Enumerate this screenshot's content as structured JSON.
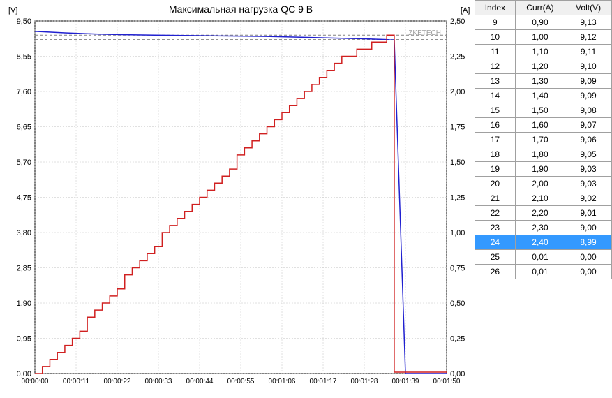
{
  "chart": {
    "title": "Максимальная нагрузка QC 9 В",
    "title_fontsize": 14,
    "left_axis_label": "[V]",
    "right_axis_label": "[A]",
    "watermark": "ZKETECH",
    "background_color": "#ffffff",
    "grid_color": "#c0c0c0",
    "axis_color": "#000000",
    "voltage_line_color": "#2020d0",
    "current_line_color": "#d02020",
    "dashed_ref_color": "#808080",
    "left_y": {
      "min": 0,
      "max": 9.5,
      "ticks": [
        0.0,
        0.95,
        1.9,
        2.85,
        3.8,
        4.75,
        5.7,
        6.65,
        7.6,
        8.55,
        9.5
      ],
      "tick_labels": [
        "0,00",
        "0,95",
        "1,90",
        "2,85",
        "3,80",
        "4,75",
        "5,70",
        "6,65",
        "7,60",
        "8,55",
        "9,50"
      ]
    },
    "right_y": {
      "min": 0,
      "max": 2.5,
      "ticks": [
        0.0,
        0.25,
        0.5,
        0.75,
        1.0,
        1.25,
        1.5,
        1.75,
        2.0,
        2.25,
        2.5
      ],
      "tick_labels": [
        "0,00",
        "0,25",
        "0,50",
        "0,75",
        "1,00",
        "1,25",
        "1,50",
        "1,75",
        "2,00",
        "2,25",
        "2,50"
      ]
    },
    "x": {
      "min": 0,
      "max": 110,
      "ticks": [
        0,
        11,
        22,
        33,
        44,
        55,
        66,
        77,
        88,
        99,
        110
      ],
      "tick_labels": [
        "00:00:00",
        "00:00:11",
        "00:00:22",
        "00:00:33",
        "00:00:44",
        "00:00:55",
        "00:01:06",
        "00:01:17",
        "00:01:28",
        "00:01:39",
        "00:01:50"
      ]
    },
    "ref_voltage": 9.0,
    "ref_current": 2.4,
    "voltage_series": [
      [
        0,
        9.22
      ],
      [
        8,
        9.18
      ],
      [
        16,
        9.15
      ],
      [
        24,
        9.13
      ],
      [
        32,
        9.12
      ],
      [
        40,
        9.11
      ],
      [
        48,
        9.1
      ],
      [
        56,
        9.09
      ],
      [
        64,
        9.08
      ],
      [
        72,
        9.06
      ],
      [
        80,
        9.04
      ],
      [
        88,
        9.02
      ],
      [
        94,
        9.0
      ],
      [
        95,
        8.99
      ],
      [
        96,
        8.99
      ],
      [
        99,
        0.0
      ],
      [
        110,
        0.0
      ]
    ],
    "current_series": [
      [
        0,
        0.0
      ],
      [
        2,
        0.0
      ],
      [
        2,
        0.05
      ],
      [
        4,
        0.05
      ],
      [
        4,
        0.1
      ],
      [
        6,
        0.1
      ],
      [
        6,
        0.15
      ],
      [
        8,
        0.15
      ],
      [
        8,
        0.2
      ],
      [
        10,
        0.2
      ],
      [
        10,
        0.25
      ],
      [
        12,
        0.25
      ],
      [
        12,
        0.3
      ],
      [
        14,
        0.3
      ],
      [
        14,
        0.4
      ],
      [
        16,
        0.4
      ],
      [
        16,
        0.45
      ],
      [
        18,
        0.45
      ],
      [
        18,
        0.5
      ],
      [
        20,
        0.5
      ],
      [
        20,
        0.55
      ],
      [
        22,
        0.55
      ],
      [
        22,
        0.6
      ],
      [
        24,
        0.6
      ],
      [
        24,
        0.7
      ],
      [
        26,
        0.7
      ],
      [
        26,
        0.75
      ],
      [
        28,
        0.75
      ],
      [
        28,
        0.8
      ],
      [
        30,
        0.8
      ],
      [
        30,
        0.85
      ],
      [
        32,
        0.85
      ],
      [
        32,
        0.9
      ],
      [
        34,
        0.9
      ],
      [
        34,
        1.0
      ],
      [
        36,
        1.0
      ],
      [
        36,
        1.05
      ],
      [
        38,
        1.05
      ],
      [
        38,
        1.1
      ],
      [
        40,
        1.1
      ],
      [
        40,
        1.15
      ],
      [
        42,
        1.15
      ],
      [
        42,
        1.2
      ],
      [
        44,
        1.2
      ],
      [
        44,
        1.25
      ],
      [
        46,
        1.25
      ],
      [
        46,
        1.3
      ],
      [
        48,
        1.3
      ],
      [
        48,
        1.35
      ],
      [
        50,
        1.35
      ],
      [
        50,
        1.4
      ],
      [
        52,
        1.4
      ],
      [
        52,
        1.45
      ],
      [
        54,
        1.45
      ],
      [
        54,
        1.55
      ],
      [
        56,
        1.55
      ],
      [
        56,
        1.6
      ],
      [
        58,
        1.6
      ],
      [
        58,
        1.65
      ],
      [
        60,
        1.65
      ],
      [
        60,
        1.7
      ],
      [
        62,
        1.7
      ],
      [
        62,
        1.75
      ],
      [
        64,
        1.75
      ],
      [
        64,
        1.8
      ],
      [
        66,
        1.8
      ],
      [
        66,
        1.85
      ],
      [
        68,
        1.85
      ],
      [
        68,
        1.9
      ],
      [
        70,
        1.9
      ],
      [
        70,
        1.95
      ],
      [
        72,
        1.95
      ],
      [
        72,
        2.0
      ],
      [
        74,
        2.0
      ],
      [
        74,
        2.05
      ],
      [
        76,
        2.05
      ],
      [
        76,
        2.1
      ],
      [
        78,
        2.1
      ],
      [
        78,
        2.15
      ],
      [
        80,
        2.15
      ],
      [
        80,
        2.2
      ],
      [
        82,
        2.2
      ],
      [
        82,
        2.25
      ],
      [
        84,
        2.25
      ],
      [
        84,
        2.25
      ],
      [
        86,
        2.25
      ],
      [
        86,
        2.3
      ],
      [
        90,
        2.3
      ],
      [
        90,
        2.35
      ],
      [
        94,
        2.35
      ],
      [
        94,
        2.4
      ],
      [
        96,
        2.4
      ],
      [
        96,
        0.01
      ],
      [
        110,
        0.01
      ]
    ]
  },
  "table": {
    "headers": [
      "Index",
      "Curr(A)",
      "Volt(V)"
    ],
    "selected_index": 24,
    "rows": [
      {
        "index": 9,
        "curr": "0,90",
        "volt": "9,13"
      },
      {
        "index": 10,
        "curr": "1,00",
        "volt": "9,12"
      },
      {
        "index": 11,
        "curr": "1,10",
        "volt": "9,11"
      },
      {
        "index": 12,
        "curr": "1,20",
        "volt": "9,10"
      },
      {
        "index": 13,
        "curr": "1,30",
        "volt": "9,09"
      },
      {
        "index": 14,
        "curr": "1,40",
        "volt": "9,09"
      },
      {
        "index": 15,
        "curr": "1,50",
        "volt": "9,08"
      },
      {
        "index": 16,
        "curr": "1,60",
        "volt": "9,07"
      },
      {
        "index": 17,
        "curr": "1,70",
        "volt": "9,06"
      },
      {
        "index": 18,
        "curr": "1,80",
        "volt": "9,05"
      },
      {
        "index": 19,
        "curr": "1,90",
        "volt": "9,03"
      },
      {
        "index": 20,
        "curr": "2,00",
        "volt": "9,03"
      },
      {
        "index": 21,
        "curr": "2,10",
        "volt": "9,02"
      },
      {
        "index": 22,
        "curr": "2,20",
        "volt": "9,01"
      },
      {
        "index": 23,
        "curr": "2,30",
        "volt": "9,00"
      },
      {
        "index": 24,
        "curr": "2,40",
        "volt": "8,99"
      },
      {
        "index": 25,
        "curr": "0,01",
        "volt": "0,00"
      },
      {
        "index": 26,
        "curr": "0,01",
        "volt": "0,00"
      }
    ]
  }
}
